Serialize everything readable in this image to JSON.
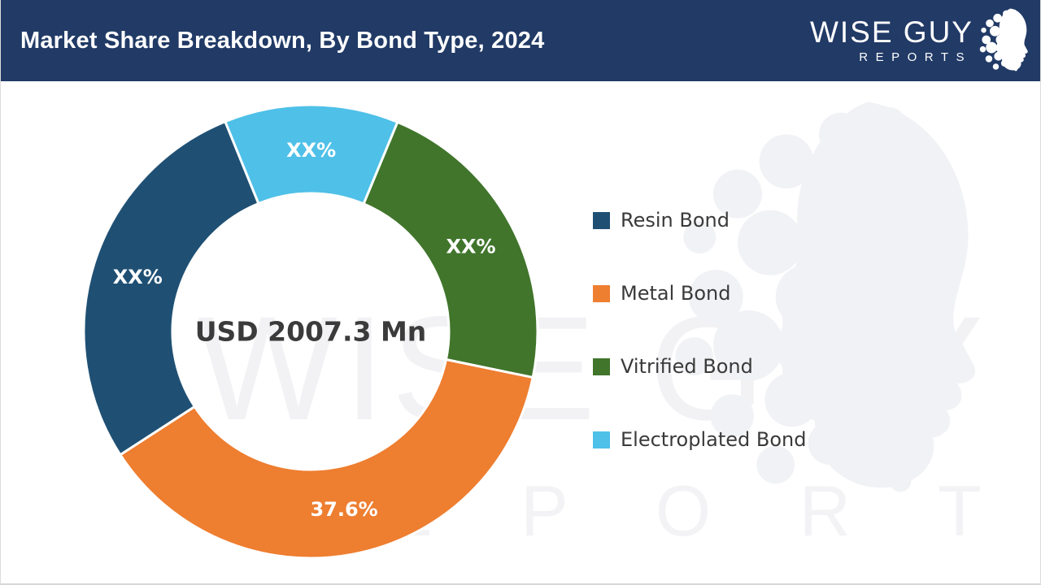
{
  "header": {
    "title": "Market Share Breakdown, By Bond Type, 2024",
    "logo": {
      "line1": "WISE GUY",
      "line2": "REPORTS"
    }
  },
  "watermark": {
    "line1": "WISE GUY",
    "line2": "R E P O R T S"
  },
  "chart_data": {
    "type": "pie",
    "subtype": "donut",
    "title": "Market Share Breakdown, By Bond Type, 2024",
    "center_label": "USD 2007.3 Mn",
    "units": "percent market share",
    "start_angle_deg": -67.5,
    "direction": "clockwise",
    "inner_radius_ratio": 0.61,
    "segments": [
      {
        "name": "Vitrified Bond",
        "share_pct": 22.0,
        "slice_label": "XX%",
        "color": "#40752B"
      },
      {
        "name": "Metal Bond",
        "share_pct": 37.6,
        "slice_label": "37.6%",
        "color": "#EE7E30"
      },
      {
        "name": "Resin Bond",
        "share_pct": 28.0,
        "slice_label": "XX%",
        "color": "#1F5074"
      },
      {
        "name": "Electroplated Bond",
        "share_pct": 12.4,
        "slice_label": "XX%",
        "color": "#4FC0E8"
      }
    ],
    "legend": [
      {
        "label": "Resin Bond",
        "color": "#1F5074"
      },
      {
        "label": "Metal Bond",
        "color": "#EE7E30"
      },
      {
        "label": "Vitrified Bond",
        "color": "#40752B"
      },
      {
        "label": "Electroplated Bond",
        "color": "#4FC0E8"
      }
    ],
    "colors": {
      "header_bg": "#213A66",
      "slice_label_text": "#FFFFFF",
      "center_text": "#3B3B3B",
      "legend_text": "#3A3A3A",
      "segment_gap": "#FFFFFF"
    }
  }
}
